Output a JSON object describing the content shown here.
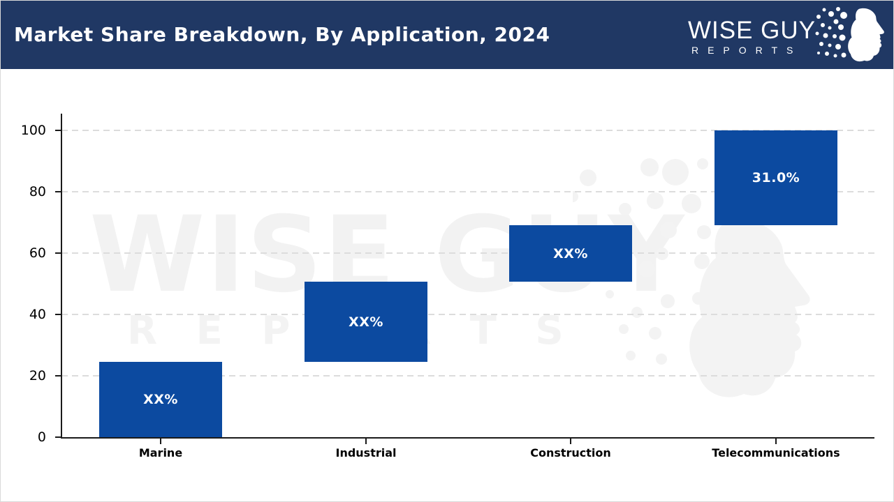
{
  "header": {
    "title": "Market Share Breakdown, By Application, 2024",
    "logo": {
      "name": "WISE GUY",
      "subtitle": "REPORTS"
    }
  },
  "watermark": {
    "line1": "WISE GUY",
    "line2": "R E P O R T S"
  },
  "colors": {
    "header_bg": "#203864",
    "bar": "#0c4aa0",
    "gridline": "#dcdcdc",
    "axis": "#1a1a1a",
    "watermark": "#f2f2f2",
    "title_text": "#ffffff",
    "bar_label_text": "#ffffff"
  },
  "chart_data": {
    "type": "bar",
    "subtype": "floating-waterfall",
    "title": "Market Share Breakdown, By Application, 2024",
    "categories": [
      "Marine",
      "Industrial",
      "Construction",
      "Telecommunications"
    ],
    "segments": [
      {
        "category": "Marine",
        "start": 0,
        "end": 24.5,
        "label": "XX%"
      },
      {
        "category": "Industrial",
        "start": 24.5,
        "end": 50.6,
        "label": "XX%"
      },
      {
        "category": "Construction",
        "start": 50.6,
        "end": 69.0,
        "label": "XX%"
      },
      {
        "category": "Telecommunications",
        "start": 69.0,
        "end": 100.0,
        "label": "31.0%"
      }
    ],
    "yticks": [
      0,
      20,
      40,
      60,
      80,
      100
    ],
    "ylim": [
      0,
      105.5
    ],
    "xlabel": "",
    "ylabel": "",
    "grid": "dashed-horizontal",
    "legend": false
  }
}
